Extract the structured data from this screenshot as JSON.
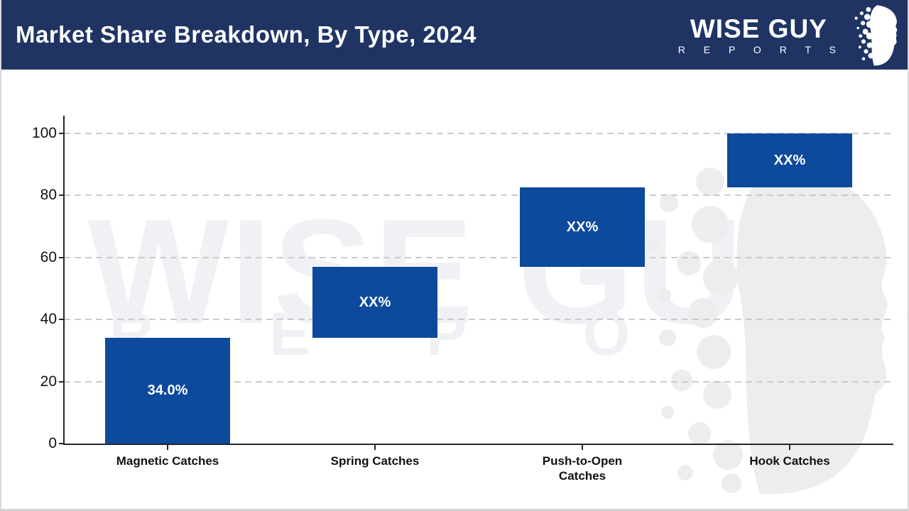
{
  "header": {
    "title": "Market Share Breakdown, By Type, 2024",
    "logo": {
      "line1": "WISE GUY",
      "line2": "R E P O R T S"
    }
  },
  "watermark": {
    "line1": "WISE GUY",
    "line2": "REPORTS"
  },
  "colors": {
    "header_bg": "#1f3463",
    "bar_fill": "#0d4a9c",
    "bar_label": "#ffffff",
    "gridline": "#cbcbcb",
    "axis": "#262626",
    "watermark": "#f0f1f4"
  },
  "chart_data": {
    "type": "bar",
    "subtype": "waterfall",
    "title": "Market Share Breakdown, By Type, 2024",
    "xlabel": "",
    "ylabel": "",
    "categories": [
      "Magnetic Catches",
      "Spring Catches",
      "Push-to-Open Catches",
      "Hook Catches"
    ],
    "segments": [
      {
        "category": "Magnetic Catches",
        "start": 0,
        "end": 34,
        "label": "34.0%"
      },
      {
        "category": "Spring Catches",
        "start": 34,
        "end": 57,
        "label": "XX%"
      },
      {
        "category": "Push-to-Open Catches",
        "start": 57,
        "end": 82.5,
        "label": "XX%"
      },
      {
        "category": "Hook Catches",
        "start": 82.5,
        "end": 100,
        "label": "XX%"
      }
    ],
    "ylim": [
      0,
      100
    ],
    "yticks": [
      0,
      20,
      40,
      60,
      80,
      100
    ],
    "grid": "horizontal-dashed",
    "legend": "none"
  }
}
